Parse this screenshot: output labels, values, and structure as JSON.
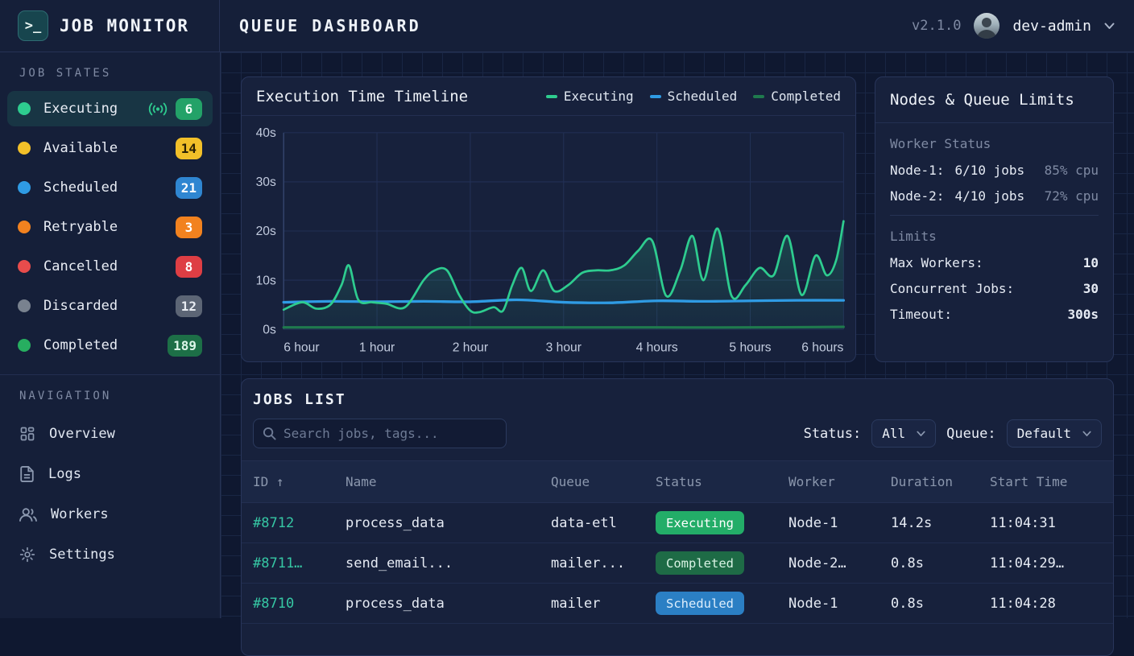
{
  "app": {
    "logo_glyph": ">_",
    "title": "JOB MONITOR",
    "page_title": "QUEUE DASHBOARD",
    "version": "v2.1.0",
    "user": "dev-admin"
  },
  "colors": {
    "background": "#0f1830",
    "panel": "#17213c",
    "border": "#28355a",
    "accent_green": "#2ecc8f",
    "accent_blue": "#2f9be4",
    "accent_dark_green": "#1f7a4d",
    "text_muted": "#7f8aa3",
    "id_link": "#36c7a4"
  },
  "sidebar": {
    "job_states_label": "JOB STATES",
    "items": [
      {
        "label": "Executing",
        "count": "6",
        "color": "#2ecc8f",
        "badge_bg": "#23a268",
        "badge_fg": "#f2fff8",
        "active": true
      },
      {
        "label": "Available",
        "count": "14",
        "color": "#f2c029",
        "badge_bg": "#f2c029",
        "badge_fg": "#2b2104"
      },
      {
        "label": "Scheduled",
        "count": "21",
        "color": "#2f9be4",
        "badge_bg": "#2f86d1",
        "badge_fg": "#ffffff"
      },
      {
        "label": "Retryable",
        "count": "3",
        "color": "#f2821f",
        "badge_bg": "#f2821f",
        "badge_fg": "#ffffff"
      },
      {
        "label": "Cancelled",
        "count": "8",
        "color": "#e84c4c",
        "badge_bg": "#de3e44",
        "badge_fg": "#ffffff"
      },
      {
        "label": "Discarded",
        "count": "12",
        "color": "#79828f",
        "badge_bg": "#5c6575",
        "badge_fg": "#e8ecf2"
      },
      {
        "label": "Completed",
        "count": "189",
        "color": "#27ae60",
        "badge_bg": "#1d6f47",
        "badge_fg": "#dcf5e8"
      }
    ],
    "navigation_label": "NAVIGATION",
    "nav_items": [
      {
        "label": "Overview",
        "icon": "dashboard-grid-icon"
      },
      {
        "label": "Logs",
        "icon": "document-icon"
      },
      {
        "label": "Workers",
        "icon": "people-icon"
      },
      {
        "label": "Settings",
        "icon": "gear-icon"
      }
    ]
  },
  "chart_data": {
    "type": "area",
    "title": "Execution Time Timeline",
    "xlabel": "",
    "ylabel": "",
    "xlim": [
      0,
      6
    ],
    "ylim": [
      0,
      40
    ],
    "grid": true,
    "legend_position": "top-right",
    "xticks": {
      "values": [
        0,
        1,
        2,
        3,
        4,
        5,
        6
      ],
      "labels": [
        "6 hour",
        "1 hour",
        "2 hour",
        "3 hour",
        "4 hours",
        "5 hours",
        "6 hours"
      ]
    },
    "yticks": {
      "values": [
        0,
        10,
        20,
        30,
        40
      ],
      "labels": [
        "0s",
        "10s",
        "20s",
        "30s",
        "40s"
      ]
    },
    "series": [
      {
        "name": "Executing",
        "color": "#2ecc8f",
        "fill": true,
        "x": [
          0,
          0.2,
          0.35,
          0.5,
          0.62,
          0.7,
          0.8,
          0.95,
          1.1,
          1.3,
          1.5,
          1.62,
          1.75,
          1.88,
          2.0,
          2.1,
          2.25,
          2.35,
          2.45,
          2.55,
          2.65,
          2.78,
          2.9,
          3.05,
          3.2,
          3.35,
          3.5,
          3.65,
          3.8,
          3.95,
          4.1,
          4.25,
          4.38,
          4.5,
          4.65,
          4.8,
          4.95,
          5.1,
          5.25,
          5.4,
          5.55,
          5.7,
          5.82,
          5.92,
          6.0
        ],
        "y": [
          4,
          5.5,
          4.2,
          5,
          9,
          13,
          6,
          5.5,
          5.2,
          4.5,
          10,
          12,
          12,
          7,
          3.8,
          3.5,
          4.5,
          3.8,
          9,
          12.5,
          7.8,
          12,
          7.8,
          9,
          11.5,
          12,
          12,
          13,
          16,
          18,
          6.8,
          12,
          19,
          10,
          20.5,
          6.8,
          9,
          12.5,
          11,
          19,
          7,
          15,
          11,
          14,
          22
        ]
      },
      {
        "name": "Scheduled",
        "color": "#2f9be4",
        "fill": false,
        "x": [
          0,
          0.5,
          1,
          1.5,
          2,
          2.5,
          3,
          3.5,
          4,
          4.5,
          5,
          5.5,
          6
        ],
        "y": [
          5.5,
          5.7,
          5.6,
          5.7,
          5.6,
          6.0,
          5.5,
          5.4,
          5.8,
          5.7,
          5.8,
          5.9,
          5.9
        ]
      },
      {
        "name": "Completed",
        "color": "#1f7a4d",
        "fill": false,
        "x": [
          0,
          1,
          2,
          3,
          4,
          5,
          6
        ],
        "y": [
          0.4,
          0.4,
          0.4,
          0.4,
          0.4,
          0.4,
          0.5
        ]
      }
    ]
  },
  "nodes_panel": {
    "title": "Nodes & Queue Limits",
    "worker_status_label": "Worker Status",
    "nodes": [
      {
        "name": "Node-1:",
        "jobs": "6/10 jobs",
        "cpu": "85% cpu"
      },
      {
        "name": "Node-2:",
        "jobs": "4/10 jobs",
        "cpu": "72% cpu"
      }
    ],
    "limits_label": "Limits",
    "limits": [
      {
        "label": "Max Workers:",
        "value": "10"
      },
      {
        "label": "Concurrent Jobs:",
        "value": "30"
      },
      {
        "label": "Timeout:",
        "value": "300s"
      }
    ]
  },
  "jobs": {
    "title": "JOBS LIST",
    "search_placeholder": "Search jobs, tags...",
    "filters": {
      "status_label": "Status:",
      "status_value": "All",
      "queue_label": "Queue:",
      "queue_value": "Default"
    },
    "table": {
      "columns": [
        "ID ↑",
        "Name",
        "Queue",
        "Status",
        "Worker",
        "Duration",
        "Start Time"
      ],
      "rows": [
        {
          "id": "#8712",
          "name": "process_data",
          "queue": "data-etl",
          "status": "Executing",
          "status_key": "executing",
          "worker": "Node-1",
          "duration": "14.2s",
          "start": "11:04:31"
        },
        {
          "id": "#8711…",
          "name": "send_email...",
          "queue": "mailer...",
          "status": "Completed",
          "status_key": "completed",
          "worker": "Node-2…",
          "duration": "0.8s",
          "start": "11:04:29…"
        },
        {
          "id": "#8710",
          "name": "process_data",
          "queue": "mailer",
          "status": "Scheduled",
          "status_key": "scheduled",
          "worker": "Node-1",
          "duration": "0.8s",
          "start": "11:04:28"
        }
      ]
    }
  },
  "status_styles": {
    "executing": {
      "bg": "#23ad68",
      "fg": "#ffffff"
    },
    "completed": {
      "bg": "#1e6b46",
      "fg": "#d9f3e4"
    },
    "scheduled": {
      "bg": "#2b7fc4",
      "fg": "#ddeefc"
    }
  }
}
